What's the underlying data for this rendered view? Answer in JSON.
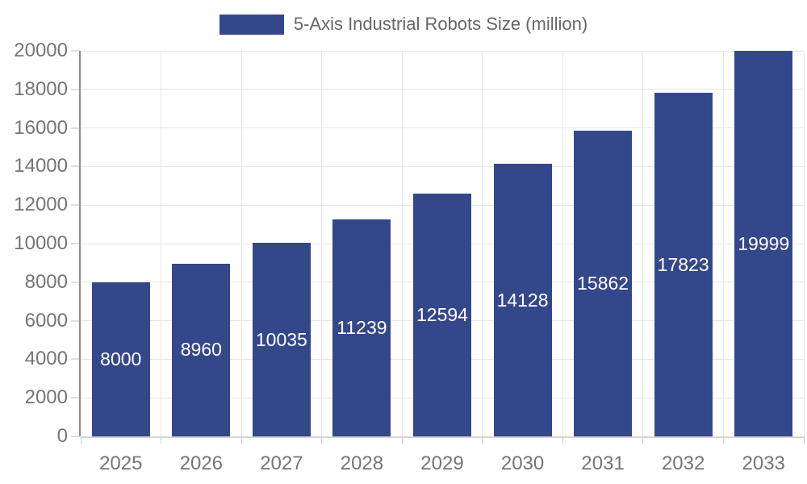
{
  "chart_data": {
    "type": "bar",
    "categories": [
      "2025",
      "2026",
      "2027",
      "2028",
      "2029",
      "2030",
      "2031",
      "2032",
      "2033"
    ],
    "series": [
      {
        "name": "5-Axis Industrial Robots Size (million)",
        "values": [
          8000,
          8960,
          10035,
          11239,
          12594,
          14128,
          15862,
          17823,
          19999
        ]
      }
    ],
    "title": "5-Axis Industrial Robots Size (million)",
    "xlabel": "",
    "ylabel": "",
    "ylim": [
      0,
      20000
    ],
    "ytick_step": 2000,
    "ytick_labels": [
      "0",
      "2000",
      "4000",
      "6000",
      "8000",
      "10000",
      "12000",
      "14000",
      "16000",
      "18000",
      "20000"
    ],
    "grid": true,
    "legend_position": "top-center",
    "value_label_position": "inside-center"
  },
  "colors": {
    "bar": "#35478B",
    "grid_line": "#e6e6e6",
    "y_axis_line": "#8c8c8c",
    "x_axis_line": "#d4d4d4",
    "tick_mark": "#cccccc",
    "tick_label_text": "#757575",
    "value_label_text": "#ffffff",
    "legend_text": "#666666",
    "background": "#ffffff"
  }
}
